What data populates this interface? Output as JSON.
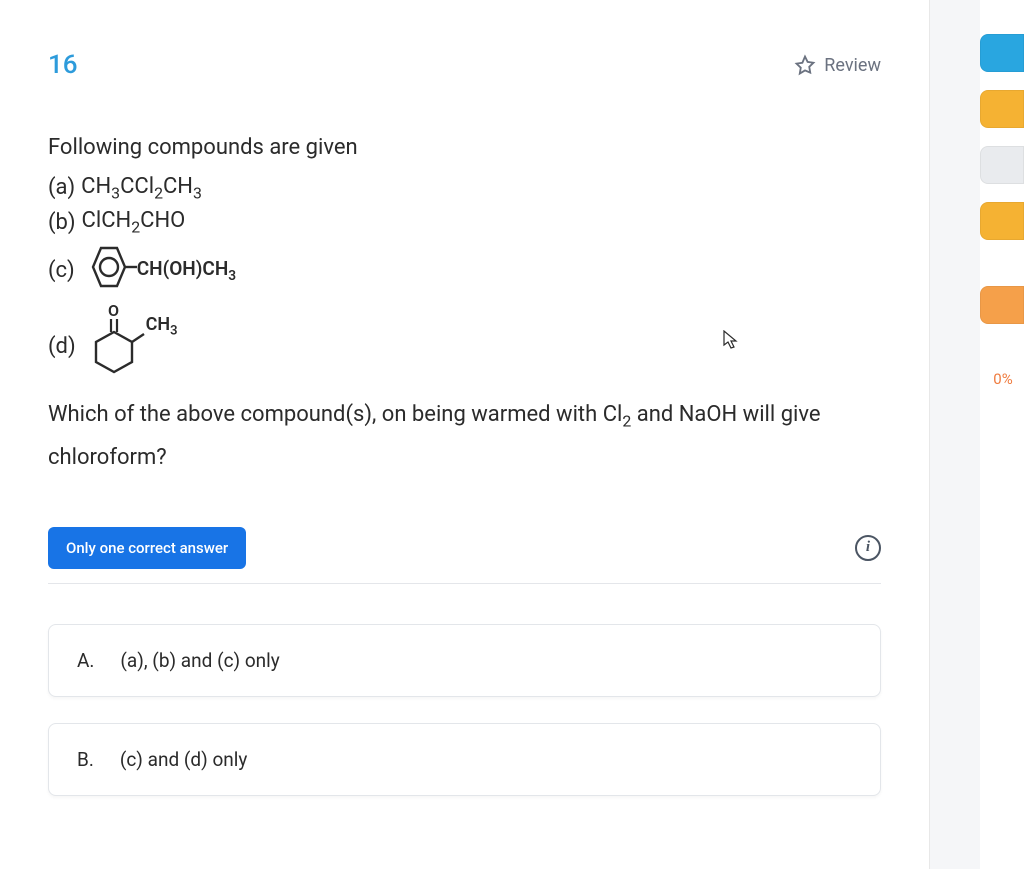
{
  "question": {
    "number": "16",
    "review_label": "Review",
    "intro": "Following compounds are given",
    "compounds": {
      "a": {
        "label": "(a)",
        "formula_html": "CH<sub>3</sub>CCl<sub>2</sub>CH<sub>3</sub>"
      },
      "b": {
        "label": "(b)",
        "formula_html": "ClCH<sub>2</sub>CHO"
      },
      "c": {
        "label": "(c)",
        "side_text": "CH(OH)CH",
        "side_sub": "3"
      },
      "d": {
        "label": "(d)",
        "side_text": "CH",
        "side_sub": "3"
      }
    },
    "followup_html": "Which of the above compound(s), on being warmed with Cl<sub>2</sub> and NaOH will give chloroform?"
  },
  "answer_meta": {
    "badge": "Only one correct answer",
    "info_glyph": "i"
  },
  "options": [
    {
      "key": "A.",
      "text": "(a), (b) and (c) only"
    },
    {
      "key": "B.",
      "text": "(c) and (d) only"
    }
  ],
  "side": {
    "chips": [
      {
        "bg": "#29a6e0"
      },
      {
        "bg": "#f5b233"
      },
      {
        "bg": "#e9ebee"
      },
      {
        "bg": "#f5b233"
      },
      {
        "bg": "#f5a04a"
      }
    ],
    "percent": "0%"
  },
  "colors": {
    "accent": "#2d9bdb",
    "badge_bg": "#1874e6",
    "text": "#2b2b2b",
    "muted": "#6b7280",
    "border": "#e3e6ea"
  }
}
